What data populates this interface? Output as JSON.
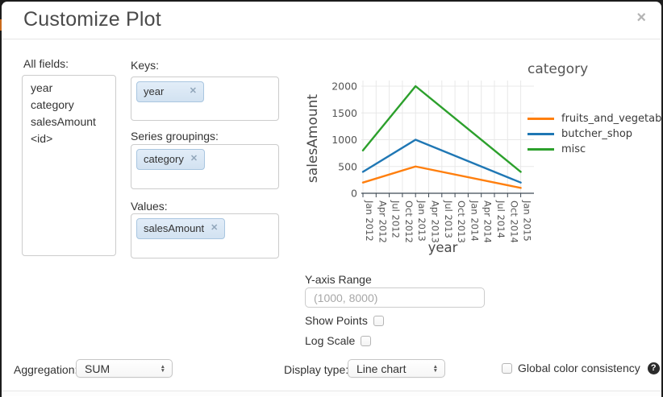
{
  "dialog": {
    "title": "Customize Plot",
    "close_label": "×"
  },
  "fields_panel": {
    "label": "All fields:",
    "items": [
      "year",
      "category",
      "salesAmount",
      "<id>"
    ]
  },
  "keys_panel": {
    "label": "Keys:",
    "tags": [
      {
        "text": "year",
        "remove_icon": "✕"
      }
    ]
  },
  "series_panel": {
    "label": "Series groupings:",
    "tags": [
      {
        "text": "category",
        "remove_icon": "✕"
      }
    ]
  },
  "values_panel": {
    "label": "Values:",
    "tags": [
      {
        "text": "salesAmount",
        "remove_icon": "✕"
      }
    ]
  },
  "options": {
    "y_axis_range_label": "Y-axis Range",
    "y_axis_range_value": "",
    "y_axis_range_placeholder": "(1000, 8000)",
    "show_points_label": "Show Points",
    "show_points_checked": false,
    "log_scale_label": "Log Scale",
    "log_scale_checked": false
  },
  "footer": {
    "aggregation_label": "Aggregation:",
    "aggregation_value": "SUM",
    "display_type_label": "Display type:",
    "display_type_value": "Line chart",
    "global_color_label": "Global color consistency",
    "global_color_checked": false,
    "help_icon": "?"
  },
  "chart_data": {
    "type": "line",
    "title": "",
    "xlabel": "year",
    "ylabel": "salesAmount",
    "legend_title": "category",
    "legend_position": "right",
    "grid": true,
    "x_ticks": [
      "Jan 2012",
      "Apr 2012",
      "Jul 2012",
      "Oct 2012",
      "Jan 2013",
      "Apr 2013",
      "Jul 2013",
      "Oct 2013",
      "Jan 2014",
      "Apr 2014",
      "Jul 2014",
      "Oct 2014",
      "Jan 2015"
    ],
    "y_ticks": [
      0,
      500,
      1000,
      1500,
      2000
    ],
    "ylim": [
      0,
      2000
    ],
    "x": [
      "Jan 2012",
      "Jan 2013",
      "Jan 2015"
    ],
    "series_x_index": [
      0,
      4,
      12
    ],
    "series": [
      {
        "name": "fruits_and_vegetables",
        "color": "#ff7f0e",
        "values": [
          200,
          500,
          100
        ]
      },
      {
        "name": "butcher_shop",
        "color": "#1f77b4",
        "values": [
          400,
          1000,
          200
        ]
      },
      {
        "name": "misc",
        "color": "#2ca02c",
        "values": [
          800,
          2000,
          400
        ]
      }
    ]
  }
}
